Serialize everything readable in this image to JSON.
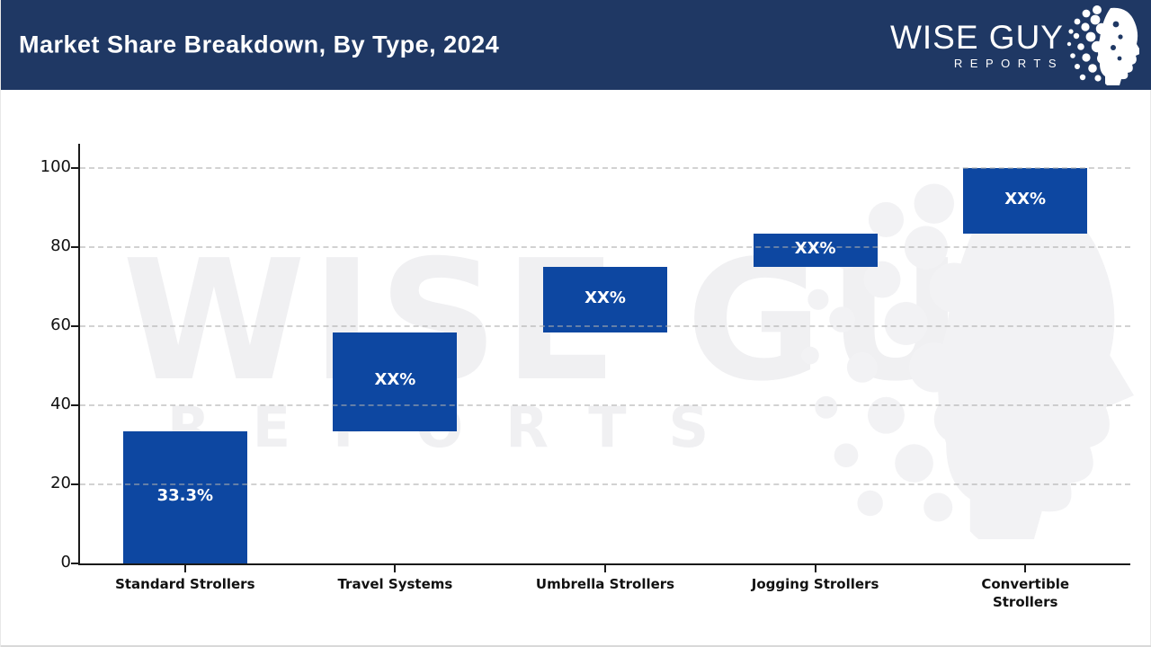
{
  "header": {
    "title": "Market Share Breakdown, By Type, 2024",
    "bg_color": "#1F3864",
    "logo": {
      "line1": "WISE GUY",
      "line2": "REPORTS"
    }
  },
  "watermark": {
    "line1": "WISE GUY",
    "line2": "REPORTS"
  },
  "chart_data": {
    "type": "bar",
    "subtype": "waterfall",
    "title": "Market Share Breakdown, By Type, 2024",
    "categories": [
      "Standard Strollers",
      "Travel Systems",
      "Umbrella Strollers",
      "Jogging Strollers",
      "Convertible\nStrollers"
    ],
    "segments": [
      {
        "category": "Standard Strollers",
        "label": "33.3%",
        "start": 0,
        "end": 33.3
      },
      {
        "category": "Travel Systems",
        "label": "XX%",
        "start": 33.3,
        "end": 58.3
      },
      {
        "category": "Umbrella Strollers",
        "label": "XX%",
        "start": 58.3,
        "end": 75.0
      },
      {
        "category": "Jogging Strollers",
        "label": "XX%",
        "start": 75.0,
        "end": 83.3
      },
      {
        "category": "Convertible Strollers",
        "label": "XX%",
        "start": 83.3,
        "end": 100.0
      }
    ],
    "yticks": [
      0,
      20,
      40,
      60,
      80,
      100
    ],
    "ylim": [
      0,
      106
    ],
    "xlabel": "",
    "ylabel": "",
    "grid": "horizontal-dashed",
    "bar_color": "#0d47a1",
    "value_label_color": "#ffffff",
    "axis_color": "#1a1a1a"
  }
}
